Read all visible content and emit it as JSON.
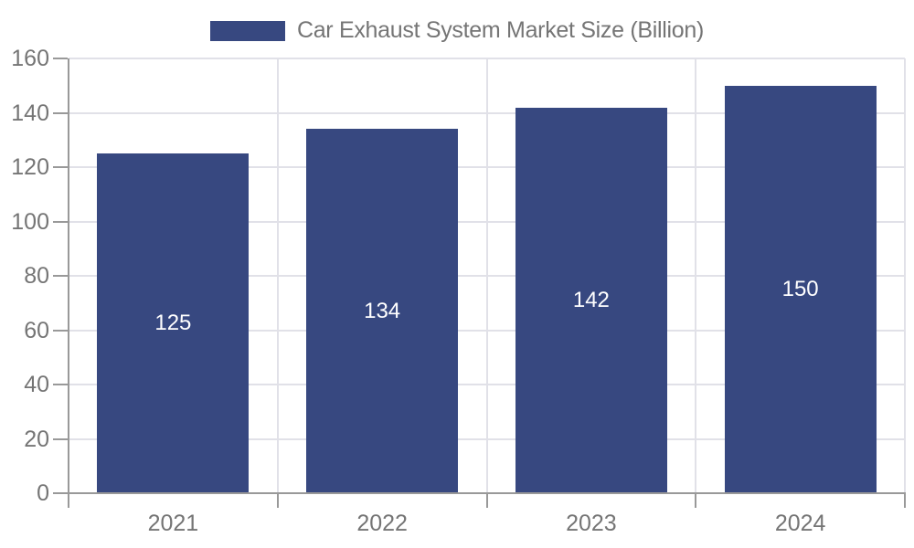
{
  "legend": {
    "label": "Car Exhaust System Market Size (Billion)"
  },
  "colors": {
    "bar": "#374880",
    "axis": "#999999",
    "grid": "#e1e1e8",
    "text": "#757575",
    "value_label": "#ffffff",
    "background": "#ffffff"
  },
  "chart_data": {
    "type": "bar",
    "title": "Car Exhaust System Market Size (Billion)",
    "categories": [
      "2021",
      "2022",
      "2023",
      "2024"
    ],
    "values": [
      125,
      134,
      142,
      150
    ],
    "xlabel": "",
    "ylabel": "",
    "ylim": [
      0,
      160
    ],
    "yticks": [
      0,
      20,
      40,
      60,
      80,
      100,
      120,
      140,
      160
    ],
    "grid": true,
    "vertical_gridlines": "at category boundaries",
    "legend_position": "top-center",
    "value_label_position": "inside-center"
  }
}
